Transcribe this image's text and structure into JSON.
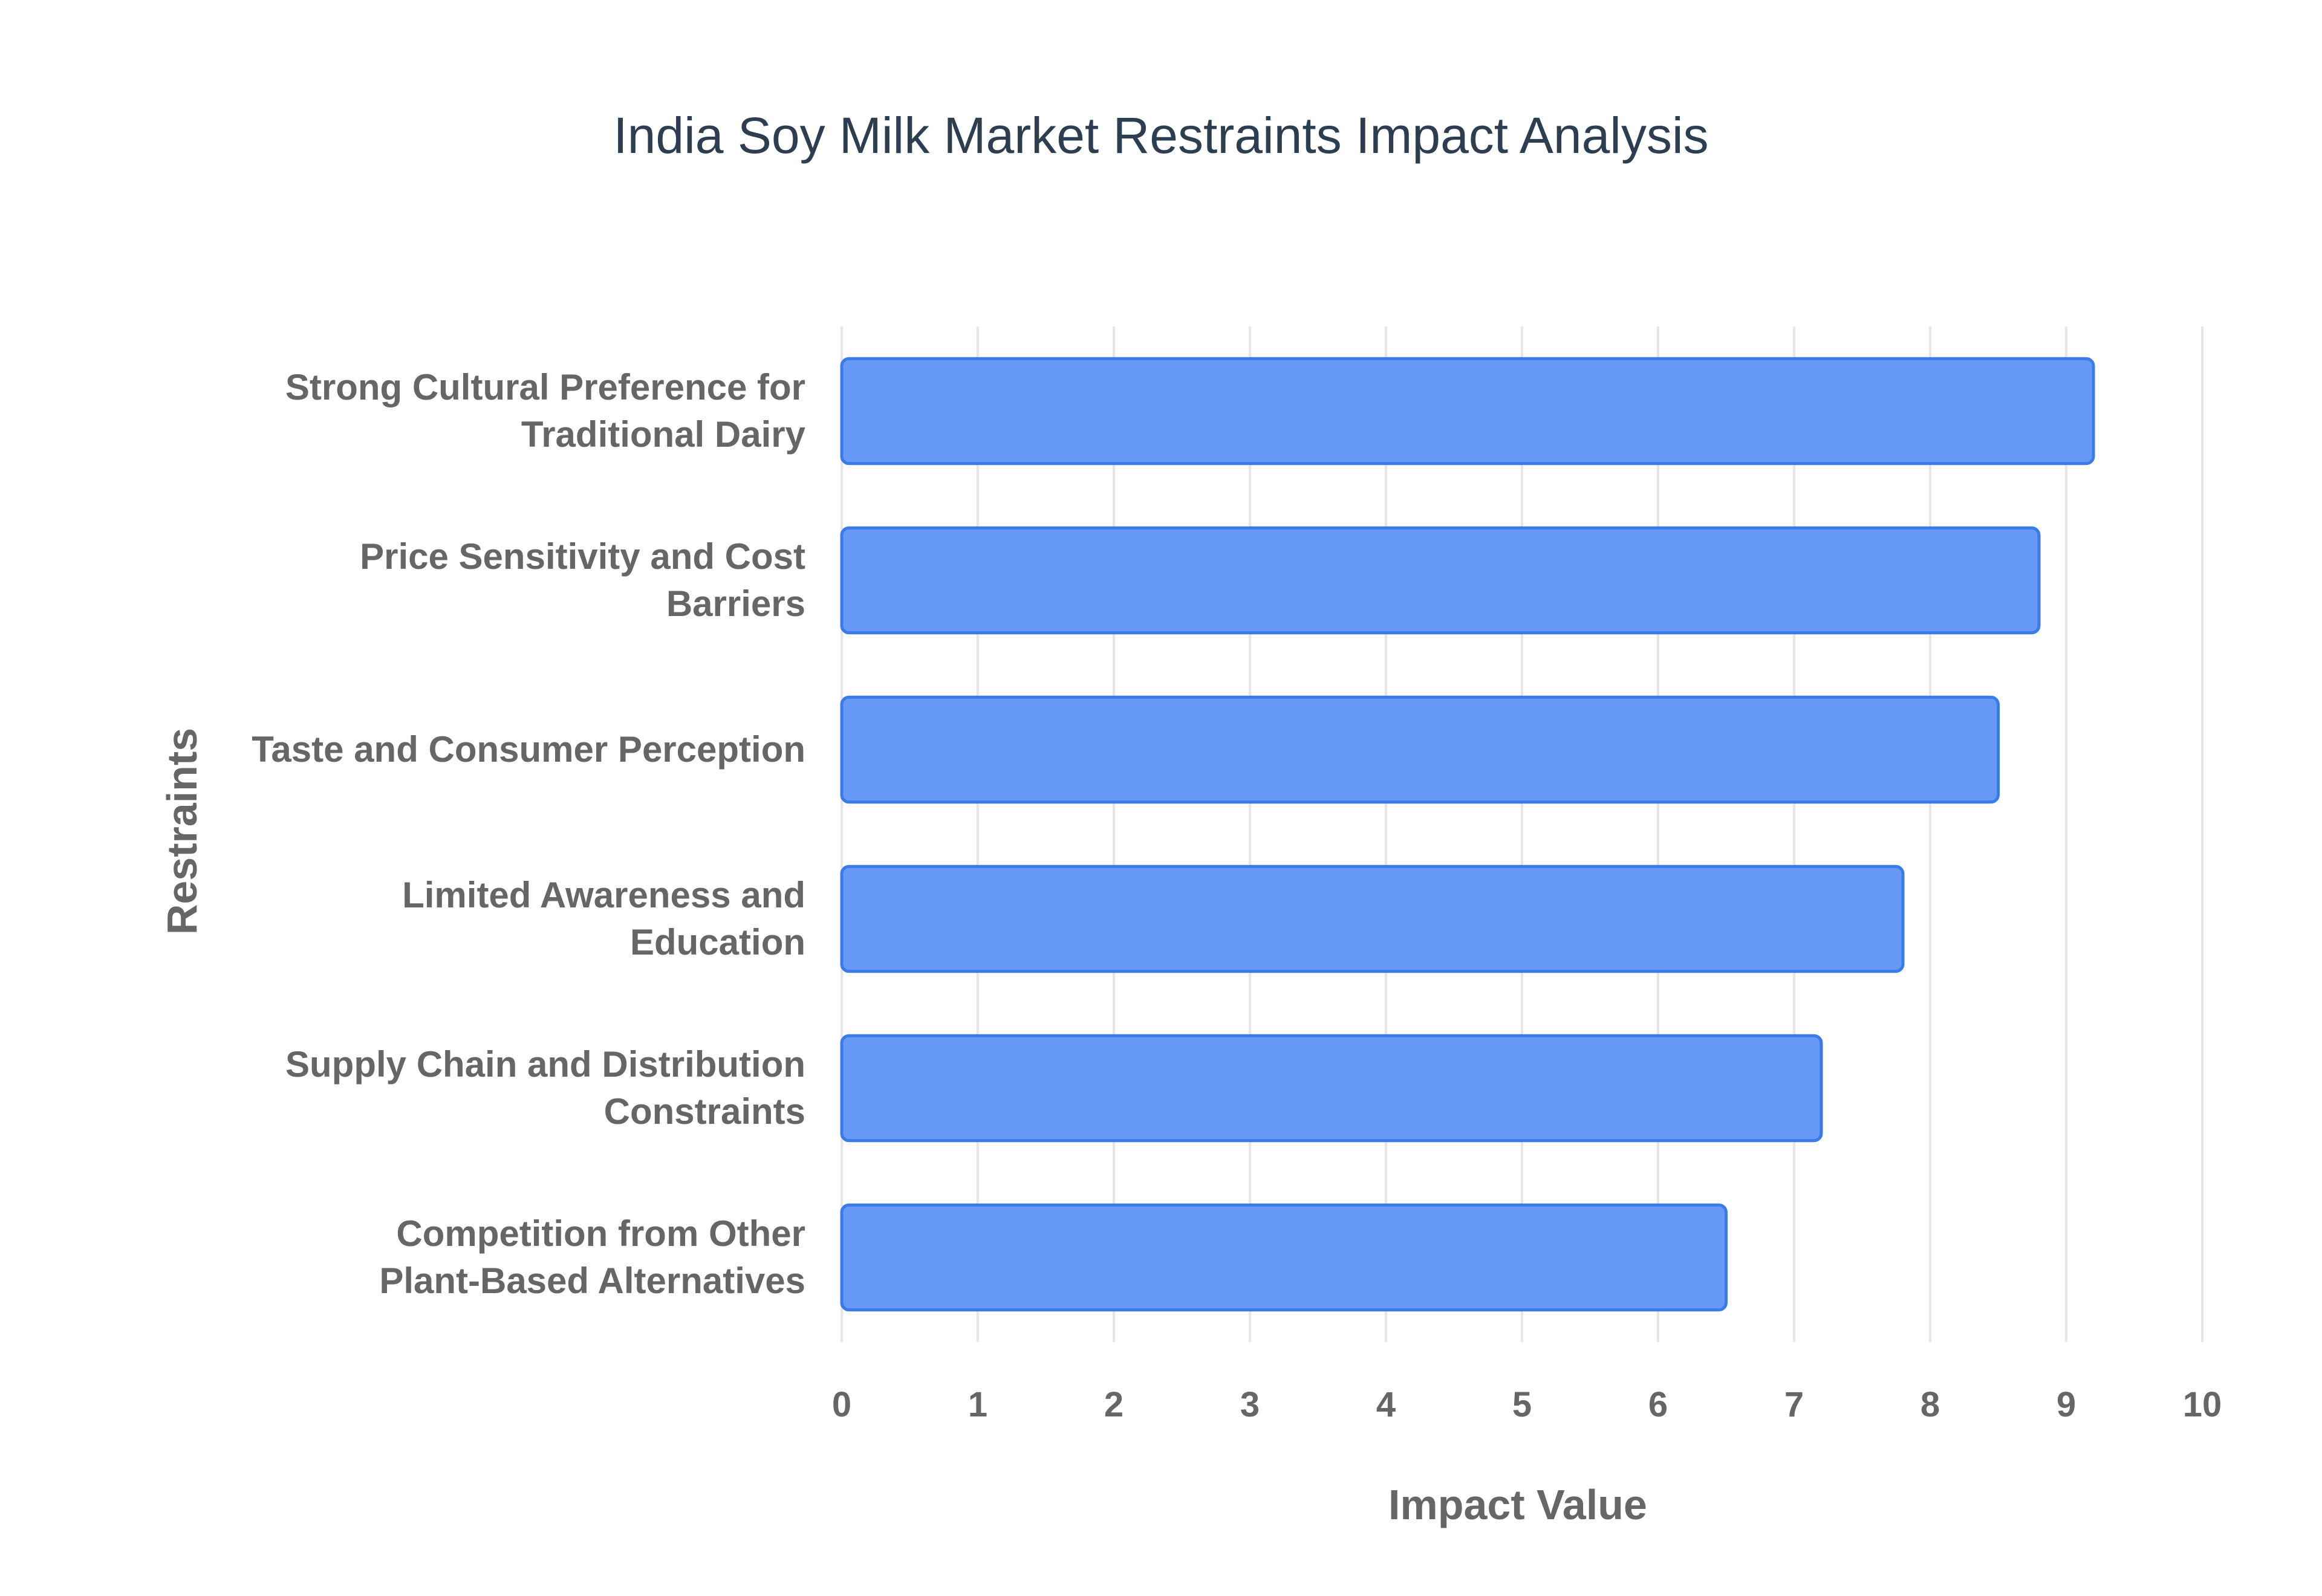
{
  "chart_data": {
    "type": "bar",
    "orientation": "horizontal",
    "title": "India Soy Milk Market Restraints Impact Analysis",
    "xlabel": "Impact Value",
    "ylabel": "Restraints",
    "categories": [
      "Strong Cultural Preference for Traditional Dairy",
      "Price Sensitivity and Cost Barriers",
      "Taste and Consumer Perception",
      "Limited Awareness and Education",
      "Supply Chain and Distribution Constraints",
      "Competition from Other Plant-Based Alternatives"
    ],
    "category_label_lines": [
      [
        "Strong Cultural Preference for",
        "Traditional Dairy"
      ],
      [
        "Price Sensitivity and Cost",
        "Barriers"
      ],
      [
        "Taste and Consumer Perception"
      ],
      [
        "Limited Awareness and",
        "Education"
      ],
      [
        "Supply Chain and Distribution",
        "Constraints"
      ],
      [
        "Competition from Other",
        "Plant-Based Alternatives"
      ]
    ],
    "values": [
      9.2,
      8.8,
      8.5,
      7.8,
      7.2,
      6.5
    ],
    "xlim": [
      0,
      10
    ],
    "xticks": [
      "0",
      "1",
      "2",
      "3",
      "4",
      "5",
      "6",
      "7",
      "8",
      "9",
      "10"
    ],
    "grid": true,
    "legend": "none",
    "colors": {
      "bar_fill": "#6699f5",
      "bar_stroke": "#3b7be8",
      "title": "#2c3e50",
      "label": "#666666",
      "grid": "#e6e6e6"
    }
  }
}
